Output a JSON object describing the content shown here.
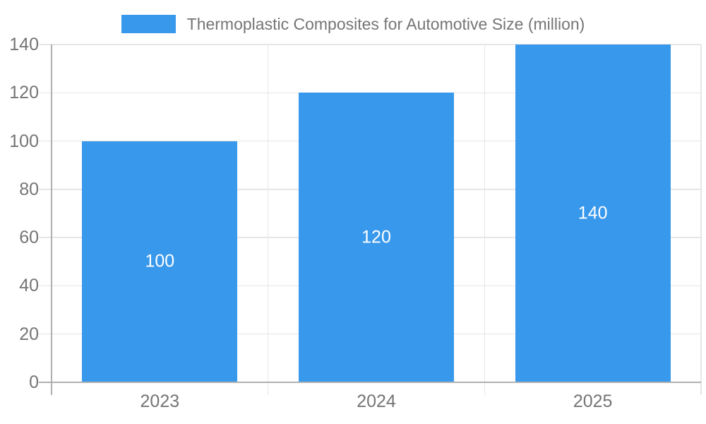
{
  "legend": {
    "label": "Thermoplastic Composites for Automotive Size (million)"
  },
  "colors": {
    "bar": "#3898EC",
    "grid": "#e6e6e6",
    "axis": "#b0b0b0",
    "text": "#757575",
    "data_label": "#ffffff",
    "background": "#ffffff"
  },
  "chart_data": {
    "type": "bar",
    "title": "Thermoplastic Composites for Automotive Size (million)",
    "categories": [
      "2023",
      "2024",
      "2025"
    ],
    "values": [
      100,
      120,
      140
    ],
    "data_labels": [
      "100",
      "120",
      "140"
    ],
    "xlabel": "",
    "ylabel": "",
    "ylim": [
      0,
      140
    ],
    "yticks": [
      0,
      20,
      40,
      60,
      80,
      100,
      120,
      140
    ],
    "grid": "on",
    "legend_position": "top-center",
    "data_label_position": "center-of-bar"
  }
}
